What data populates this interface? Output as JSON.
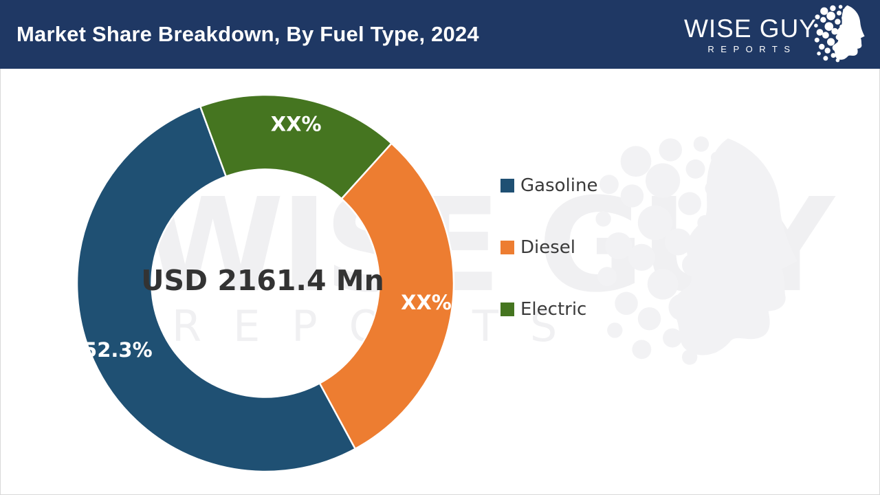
{
  "header": {
    "title": "Market Share Breakdown, By Fuel Type, 2024",
    "logo": {
      "wordmark": "WISE GUY",
      "subtitle": "REPORTS"
    }
  },
  "watermark": {
    "wordmark": "WISE GUY",
    "subtitle": "REPORTS"
  },
  "chart_data": {
    "type": "donut",
    "title": "Market Share Breakdown, By Fuel Type, 2024",
    "center_label": "USD 2161.4 Mn",
    "units": "percent share",
    "segments": [
      {
        "name": "Gasoline",
        "value_pct": 52.3,
        "label": "52.3%",
        "color": "#1F5073"
      },
      {
        "name": "Diesel",
        "value_pct": 30.4,
        "label": "XX%",
        "color": "#ED7D31"
      },
      {
        "name": "Electric",
        "value_pct": 17.3,
        "label": "XX%",
        "color": "#457520"
      }
    ],
    "layout": {
      "start_angle_deg": 151.5,
      "clockwise_order": [
        "Gasoline",
        "Electric",
        "Diesel"
      ],
      "inner_radius_ratio": 0.604,
      "label_radius_ratio": 0.86,
      "legend_position": "right"
    }
  },
  "colors": {
    "header_bar": "#1F3864",
    "background": "#FFFFFF",
    "center_text": "#333333",
    "legend_text": "#3A3A3A",
    "watermark": "#F0F0F2",
    "border": "#D8D8D8"
  }
}
